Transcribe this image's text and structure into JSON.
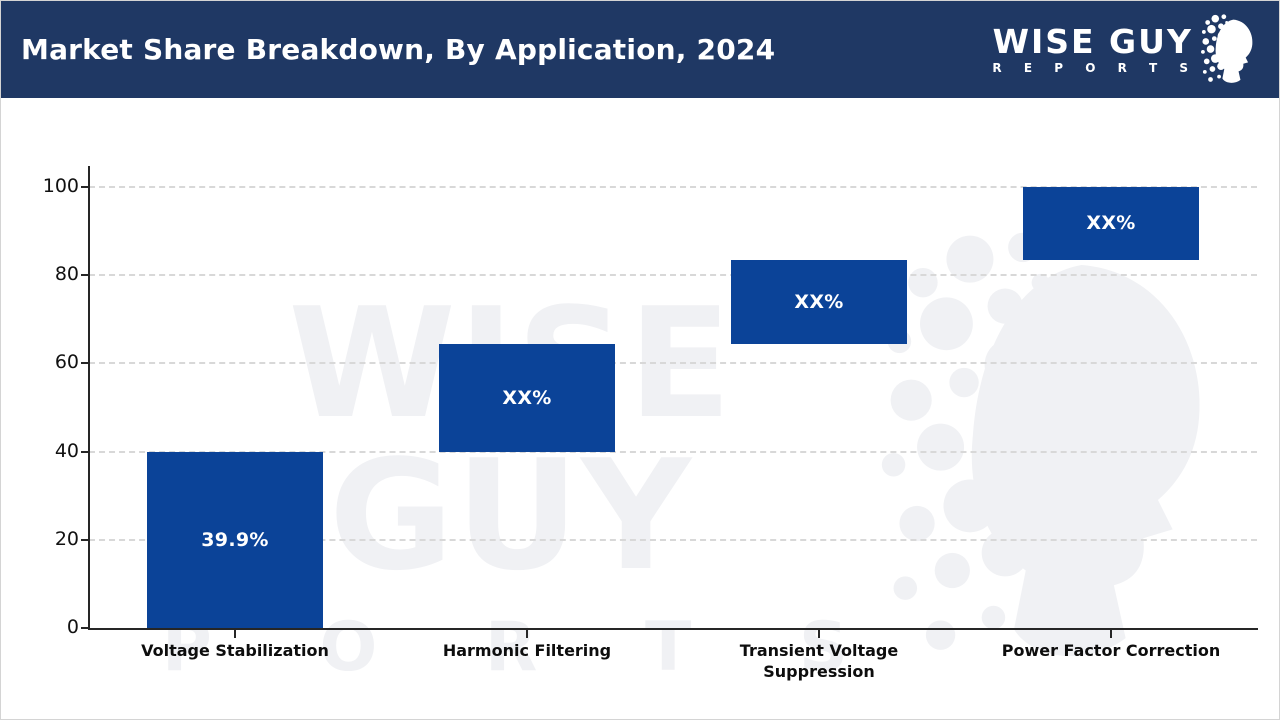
{
  "header": {
    "title": "Market Share Breakdown, By Application, 2024",
    "background_color": "#1f3864",
    "logo": {
      "line1": "WISE GUY",
      "line2": "R E P O R T S"
    }
  },
  "watermark": {
    "line1": "WISE GUY",
    "line2": "P O R T S"
  },
  "chart_data": {
    "type": "bar",
    "subtype": "waterfall",
    "title": "Market Share Breakdown, By Application, 2024",
    "categories": [
      "Voltage Stabilization",
      "Harmonic Filtering",
      "Transient Voltage Suppression",
      "Power Factor Correction"
    ],
    "segments": [
      {
        "category": "Voltage Stabilization",
        "start": 0,
        "end": 39.9,
        "label": "39.9%"
      },
      {
        "category": "Harmonic Filtering",
        "start": 40,
        "end": 64.4,
        "label": "XX%"
      },
      {
        "category": "Transient Voltage Suppression",
        "start": 64.4,
        "end": 83.5,
        "label": "XX%"
      },
      {
        "category": "Power Factor Correction",
        "start": 83.5,
        "end": 100,
        "label": "XX%"
      }
    ],
    "yticks": [
      0,
      20,
      40,
      60,
      80,
      100
    ],
    "ylim": [
      0,
      100
    ],
    "xlabel": "",
    "ylabel": "",
    "grid": "horizontal-dashed",
    "legend": "none",
    "bar_color": "#0b4398",
    "bar_label_color": "#ffffff",
    "axis_color": "#262626",
    "gridline_color": "#d8d8d8"
  }
}
